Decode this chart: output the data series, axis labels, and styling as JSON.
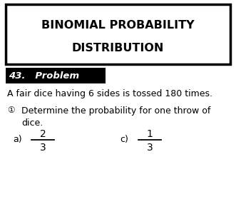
{
  "title_line1": "BINOMIAL PROBABILITY",
  "title_line2": "DISTRIBUTION",
  "section_label": "43.   Problem",
  "body_text": "A fair dice having 6 sides is tossed 180 times.",
  "option_a_label": "a)",
  "option_a_num": "2",
  "option_a_den": "3",
  "option_c_label": "c)",
  "option_c_num": "1",
  "option_c_den": "3",
  "bg_color": "#ffffff",
  "title_box_border": "#000000",
  "section_bg": "#000000",
  "section_text_color": "#ffffff",
  "body_text_color": "#000000",
  "fig_width": 3.31,
  "fig_height": 3.07,
  "dpi": 100
}
